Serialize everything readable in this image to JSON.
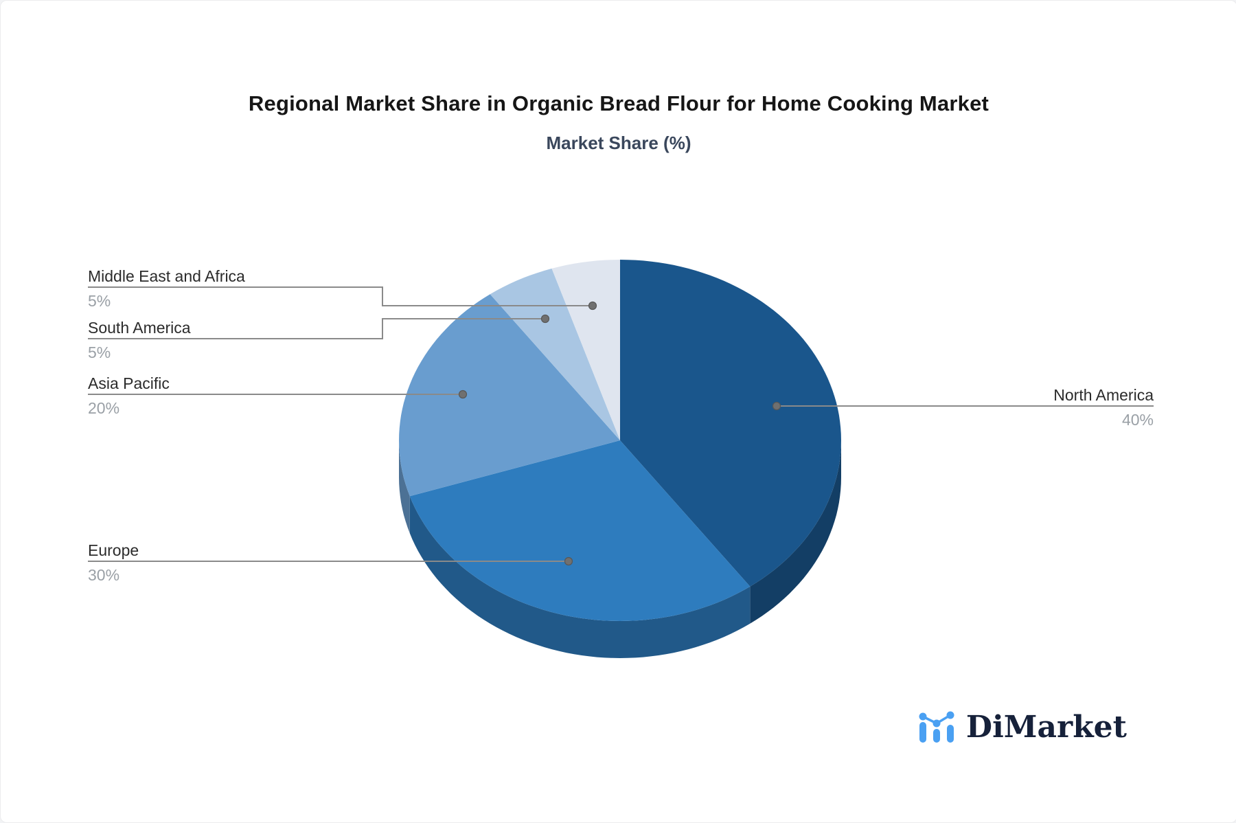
{
  "page": {
    "background": "#ffffff"
  },
  "chart_data": {
    "type": "pie",
    "style": "3d",
    "title": "Regional Market Share in Organic Bread Flour for Home Cooking Market",
    "subtitle": "Market Share (%)",
    "unit": "%",
    "direction": "clockwise",
    "start_angle_deg": 0,
    "legend": "none, leader-line labels",
    "series": [
      {
        "name": "North America",
        "value": 40,
        "label": "40%",
        "color": "#1A568C"
      },
      {
        "name": "Europe",
        "value": 30,
        "label": "30%",
        "color": "#2E7CBE"
      },
      {
        "name": "Asia Pacific",
        "value": 20,
        "label": "20%",
        "color": "#699DCF"
      },
      {
        "name": "South America",
        "value": 5,
        "label": "5%",
        "color": "#A9C6E3"
      },
      {
        "name": "Middle East and Africa",
        "value": 5,
        "label": "5%",
        "color": "#DFE5EF"
      }
    ],
    "leader_line_color": "#8a8a8a",
    "leader_dot_color": "#707070",
    "label_name_color": "#2b2b2b",
    "label_value_color": "#9aa0a6"
  },
  "branding": {
    "logo_text": "DiMarket",
    "logo_icon": "mini-bar-chart-icon",
    "logo_text_color": "#16213a",
    "logo_accent_color": "#4AA0F2"
  }
}
